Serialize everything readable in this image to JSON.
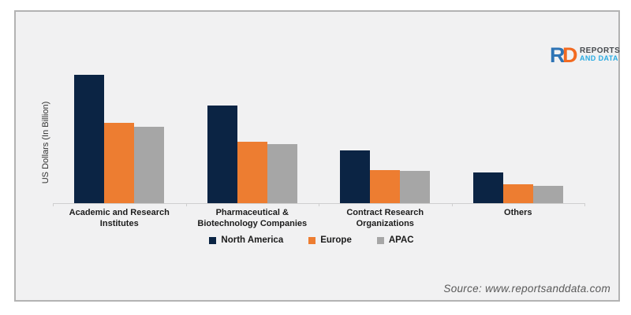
{
  "canvas": {
    "background": "#ffffff",
    "panel_background": "#f1f1f2",
    "panel_border_color": "#b3b3b3"
  },
  "logo": {
    "mark_r": "R",
    "mark_d": "D",
    "mark_r_color": "#2e74b5",
    "mark_d_color": "#f26a21",
    "line1": "REPORTS",
    "line2": "AND DATA",
    "line1_color": "#474b4f",
    "line2_color": "#29abe2"
  },
  "chart_data": {
    "type": "bar",
    "title": "",
    "xlabel": "",
    "ylabel": "US Dollars  (In Billion)",
    "categories": [
      "Academic and Research Institutes",
      "Pharmaceutical & Biotechnology Companies",
      "Contract Research Organizations",
      "Others"
    ],
    "series": [
      {
        "name": "North America",
        "color": "#0b2444",
        "values": [
          16.3,
          12.4,
          6.7,
          3.9
        ]
      },
      {
        "name": "Europe",
        "color": "#ed7d31",
        "values": [
          10.2,
          7.8,
          4.2,
          2.4
        ]
      },
      {
        "name": "APAC",
        "color": "#a6a6a6",
        "values": [
          9.7,
          7.5,
          4.1,
          2.2
        ]
      }
    ],
    "ylim": [
      0,
      17
    ],
    "y_tick_labels_visible": false,
    "grid": false,
    "legend_position": "bottom",
    "axis_line_color": "#cfcfcf"
  },
  "source": {
    "label": "Source: www.reportsanddata.com"
  }
}
